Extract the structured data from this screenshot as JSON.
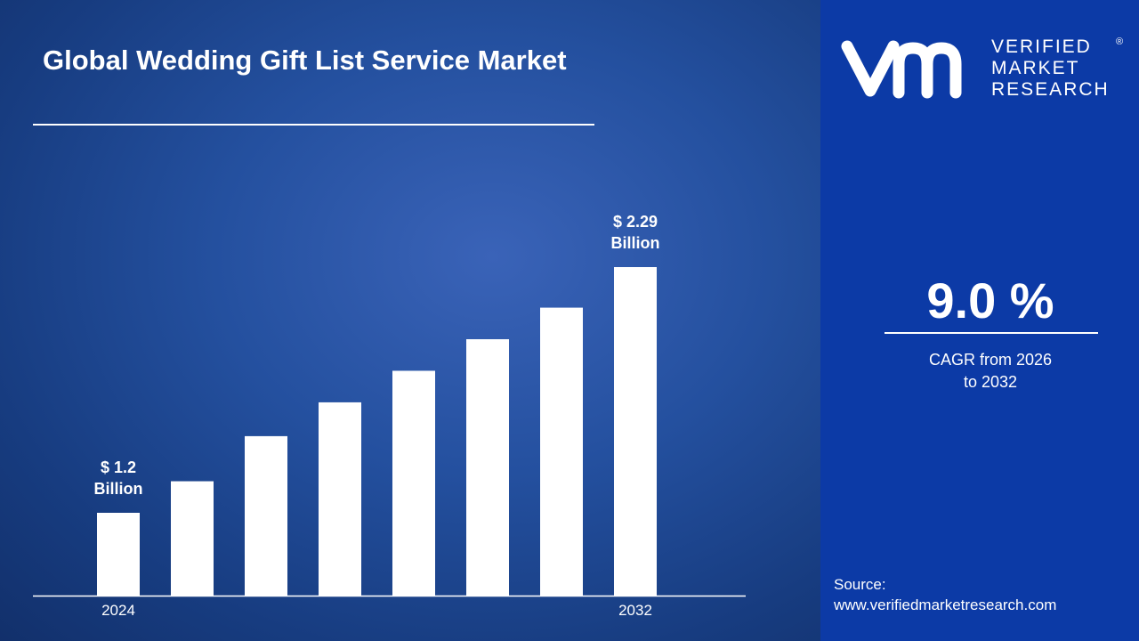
{
  "chart_data": {
    "type": "bar",
    "title": "Global Wedding Gift List Service Market",
    "categories": [
      "2024",
      null,
      null,
      null,
      null,
      null,
      null,
      "2032"
    ],
    "values": [
      1.2,
      1.34,
      1.54,
      1.69,
      1.83,
      1.97,
      2.11,
      2.29
    ],
    "value_labels": [
      "$ 1.2 Billion",
      null,
      null,
      null,
      null,
      null,
      null,
      "$ 2.29 Billion"
    ],
    "color": "#ffffff"
  },
  "logo": {
    "line1": "VERIFIED",
    "line2": "MARKET",
    "line3": "RESEARCH"
  },
  "cagr": {
    "value": "9.0 %",
    "label": "CAGR from 2026 to 2032"
  },
  "source": {
    "label": "Source:",
    "url": "www.verifiedmarketresearch.com"
  }
}
